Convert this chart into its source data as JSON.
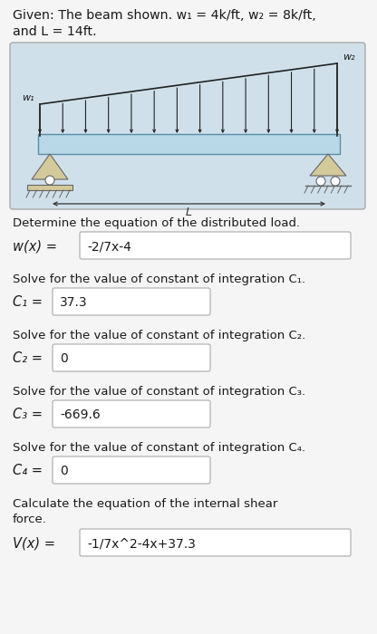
{
  "background_color": "#cfe0ea",
  "page_bg": "#f5f5f5",
  "title_line1": "Given: The beam shown. w₁ = 4k/ft, w₂ = 8k/ft,",
  "title_line2": "and L = 14ft.",
  "section1_label": "Determine the equation of the distributed load.",
  "wx_label": "w(x) =",
  "wx_value": "-2/7x-4",
  "c1_label": "Solve for the value of constant of integration C₁.",
  "c1_eq": "C₁ =",
  "c1_value": "37.3",
  "c2_label": "Solve for the value of constant of integration C₂.",
  "c2_eq": "C₂ =",
  "c2_value": "0",
  "c3_label": "Solve for the value of constant of integration C₃.",
  "c3_eq": "C₃ =",
  "c3_value": "-669.6",
  "c4_label": "Solve for the value of constant of integration C₄.",
  "c4_eq": "C₄ =",
  "c4_value": "0",
  "shear_label1": "Calculate the equation of the internal shear",
  "shear_label2": "force.",
  "vx_label": "V(x) =",
  "vx_value": "-1/7x^2-4x+37.3",
  "box_color": "#ffffff",
  "text_color": "#1a1a1a",
  "beam_color_top": "#b8d8e8",
  "beam_color_bot": "#7aafc4",
  "beam_border": "#5a8fa8",
  "support_color": "#d4c99a",
  "arrow_color": "#222222"
}
